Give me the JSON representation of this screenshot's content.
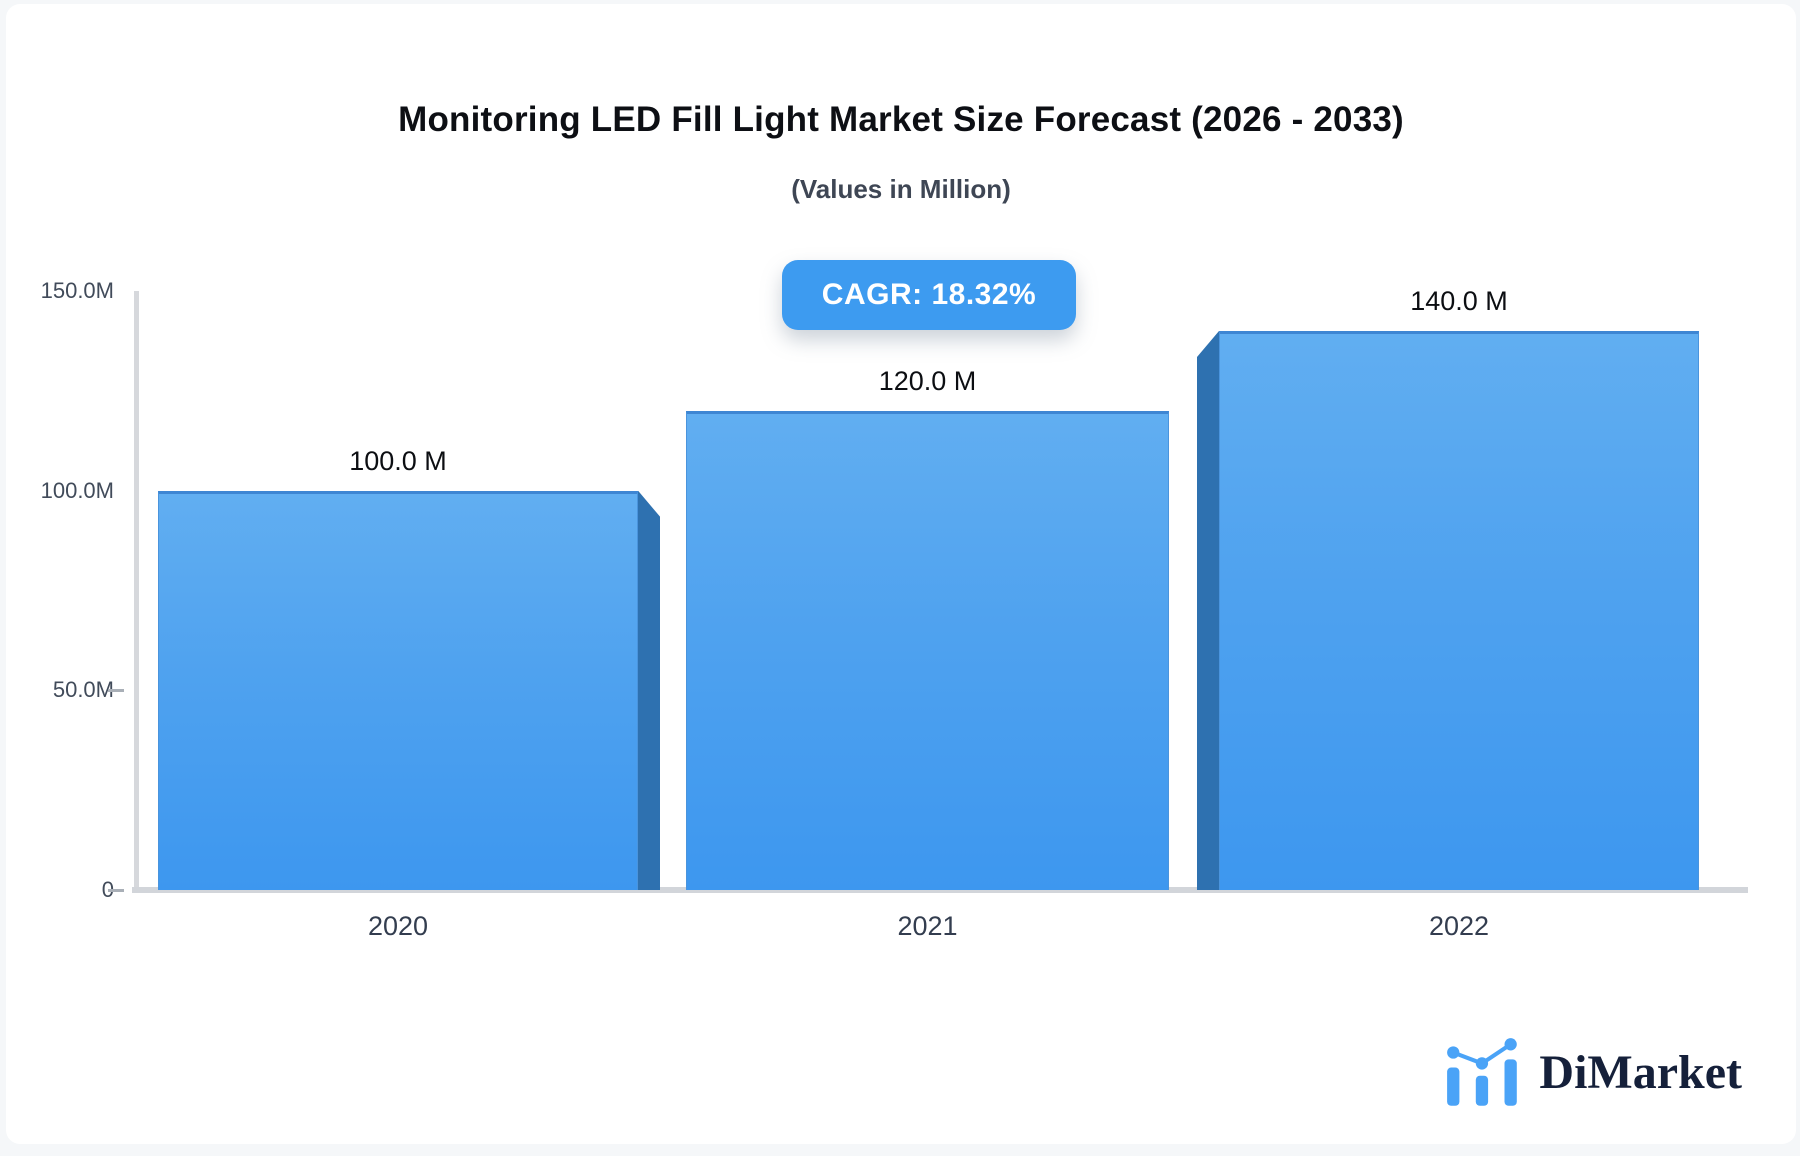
{
  "page": {
    "background_color": "#f5f7f9",
    "card_color": "#ffffff"
  },
  "chart": {
    "title": "Monitoring LED Fill Light Market Size Forecast (2026 - 2033)",
    "subtitle": "(Values in Million)",
    "cagr_label": "CAGR: 18.32%"
  },
  "chart_data": {
    "type": "bar",
    "title": "Monitoring LED Fill Light Market Size Forecast (2026 - 2033)",
    "subtitle": "(Values in Million)",
    "unit": "Million",
    "cagr_percent": 18.32,
    "categories": [
      "2020",
      "2021",
      "2022"
    ],
    "values": [
      100,
      120,
      140
    ],
    "value_labels": [
      "100.0 M",
      "120.0 M",
      "140.0 M"
    ],
    "ylim": [
      0,
      150
    ],
    "yticks": [
      {
        "label": "150.0M",
        "value": 150,
        "dash": false
      },
      {
        "label": "100.0M",
        "value": 100,
        "dash": false
      },
      {
        "label": "50.0M",
        "value": 50,
        "dash": true
      },
      {
        "label": "0",
        "value": 0,
        "dash": true
      }
    ],
    "grid": false,
    "legend": false,
    "bar_color_top": "#61aef1",
    "bar_color_bottom": "#3d97ef",
    "bar_border_color": "#3e86d3",
    "bar_side_3d_color": "#2e71b0",
    "bar_side_3d": [
      "right",
      "none",
      "left"
    ],
    "accent_color": "#3d9bf0"
  },
  "logo": {
    "text": "DiMarket",
    "icon": "mini-bar-line-chart-icon",
    "text_color": "#15203a",
    "icon_color": "#4aa3f7"
  }
}
